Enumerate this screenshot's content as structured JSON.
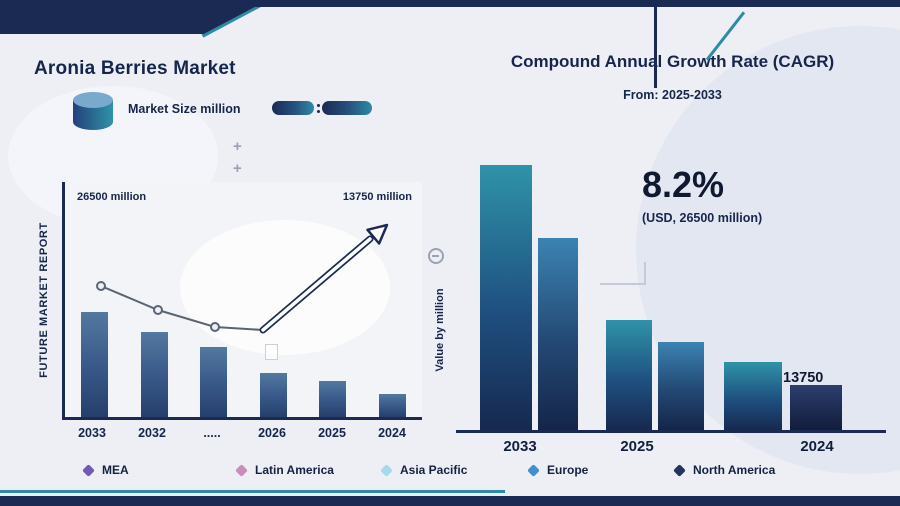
{
  "colors": {
    "navy": "#1b2a52",
    "teal": "#2e8ba4",
    "title_text": "#16254a",
    "background": "#edeff5",
    "right_bar_top": "#2f93a8",
    "right_bar_bottom": "#16294f",
    "left_bar_top": "#53799f",
    "left_bar_bottom": "#263f6c",
    "dark_bar_top": "#2c3e6e",
    "dark_bar_bottom": "#121c3c"
  },
  "header": {
    "title": "Aronia Berries Market",
    "market_size_legend": "Market Size million"
  },
  "left_chart": {
    "y_axis_label": "FUTURE MARKET REPORT",
    "top_left_value": "26500 million",
    "top_right_value": "13750 million"
  },
  "right_chart": {
    "title": "Compound Annual Growth Rate (CAGR)",
    "subtitle": "From: 2025-2033",
    "cagr_value": "8.2%",
    "cagr_detail": "(USD, 26500 million)",
    "y_axis_label": "Value by million",
    "bar_annotation": "13750"
  },
  "region_legend": [
    {
      "label": "MEA",
      "color": "#6f5bb5"
    },
    {
      "label": "Latin America",
      "color": "#cd8bbb"
    },
    {
      "label": "Asia Pacific",
      "color": "#a6d9ea"
    },
    {
      "label": "Europe",
      "color": "#3f8fd2"
    },
    {
      "label": "North America",
      "color": "#25345f"
    }
  ],
  "chart_data": [
    {
      "type": "bar",
      "title": "Aronia Berries Market - Market Size million",
      "categories": [
        "2033",
        "2032",
        ".....",
        "2026",
        "2025",
        "2024"
      ],
      "values": [
        26500,
        21500,
        17700,
        11100,
        9100,
        5800
      ],
      "ylabel": "FUTURE MARKET REPORT",
      "ylim": [
        0,
        26500
      ],
      "grid": false,
      "annotations": [
        "26500 million",
        "13750 million"
      ],
      "overlay": "marker line declining from 2033 to 2026 then outlined arrow rising toward 13750 million"
    },
    {
      "type": "bar",
      "title": "Compound Annual Growth Rate (CAGR)",
      "subtitle": "From: 2025-2033",
      "cagr": "8.2%",
      "cagr_basis": "(USD, 26500 million)",
      "categories": [
        "2033",
        "2025",
        "2024"
      ],
      "series": [
        {
          "name": "value-high",
          "values": [
            26500,
            11000,
            6800
          ]
        },
        {
          "name": "value-low",
          "values": [
            19200,
            8800,
            4500
          ]
        }
      ],
      "ylabel": "Value by million",
      "ylim": [
        0,
        26500
      ],
      "grid": false,
      "annotations": [
        {
          "category": "2024",
          "text": "13750"
        }
      ]
    }
  ]
}
